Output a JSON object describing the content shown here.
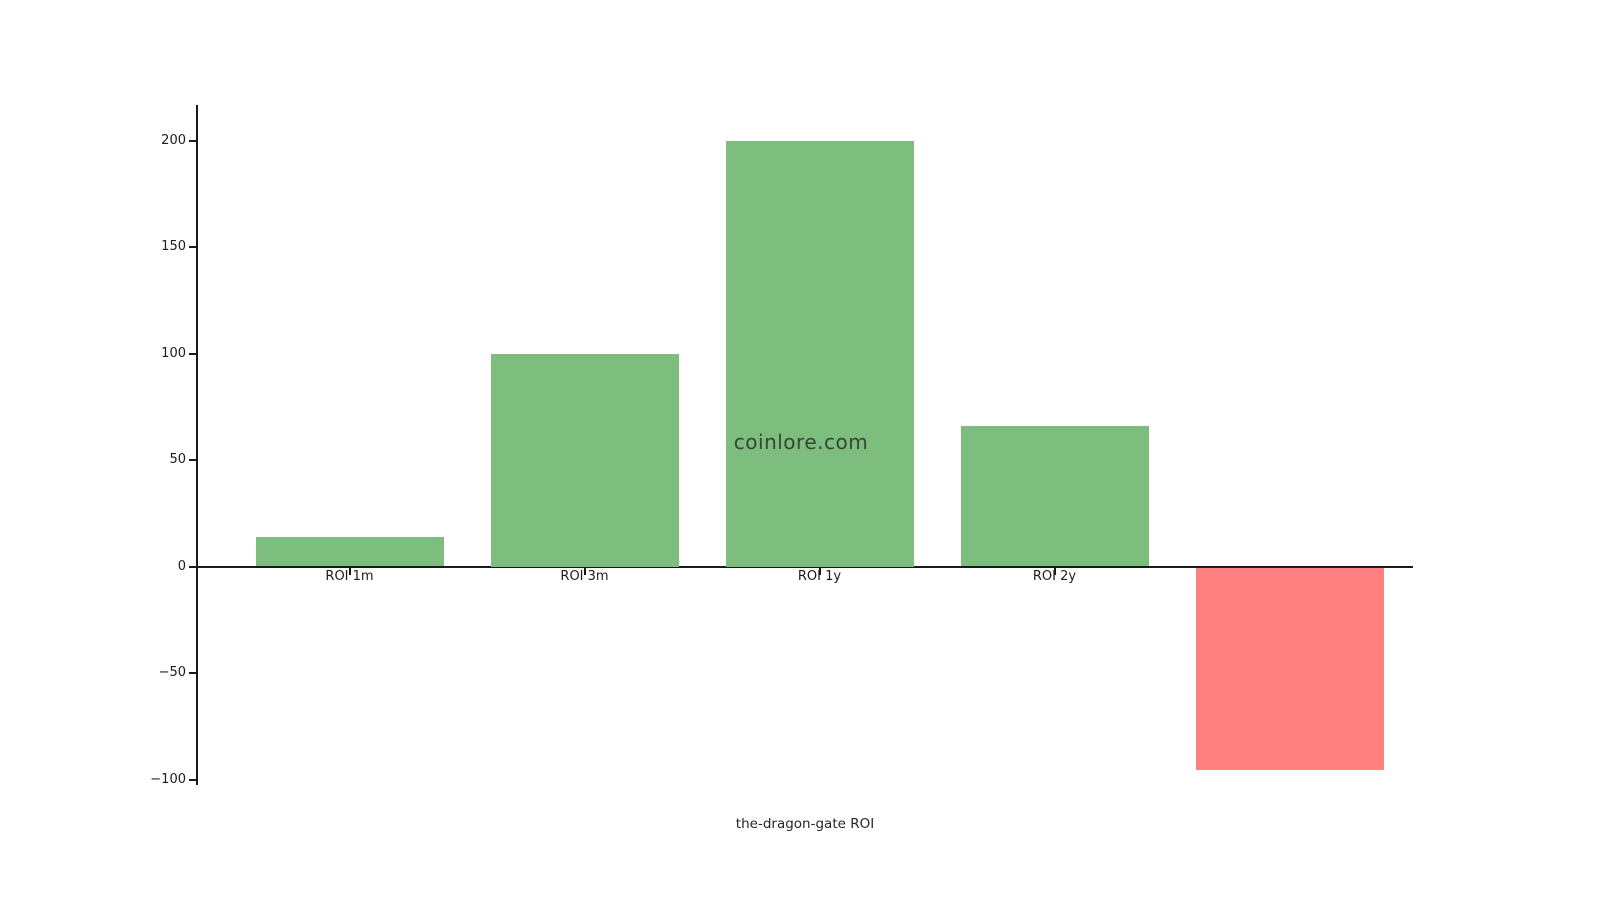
{
  "page": {
    "title": "the-dragon-gate ROI",
    "watermark": "coinlore.com"
  },
  "colors": {
    "positive_bar": "#7dbd7d",
    "negative_bar": "#ff8080",
    "axis": "#1a1a1a",
    "watermark_text": "#2a302a"
  },
  "chart_data": {
    "type": "bar",
    "title": "the-dragon-gate ROI",
    "watermark": "coinlore.com",
    "categories": [
      "ROI 1m",
      "ROI 3m",
      "ROI 1y",
      "ROI 2y",
      ""
    ],
    "values": [
      14,
      100,
      200,
      66,
      -95
    ],
    "bar_colors": [
      "#7dbd7d",
      "#7dbd7d",
      "#7dbd7d",
      "#7dbd7d",
      "#ff8080"
    ],
    "xlabel": "",
    "ylabel": "",
    "ylim": [
      -115,
      215
    ],
    "grid": false,
    "legend": "none",
    "yticks": [
      {
        "v": 200,
        "label": "200"
      },
      {
        "v": 150,
        "label": "150"
      },
      {
        "v": 100,
        "label": "100"
      },
      {
        "v": 50,
        "label": "50"
      },
      {
        "v": 0,
        "label": "0"
      },
      {
        "v": -50,
        "label": "−50"
      },
      {
        "v": -100,
        "label": "−100"
      }
    ]
  }
}
